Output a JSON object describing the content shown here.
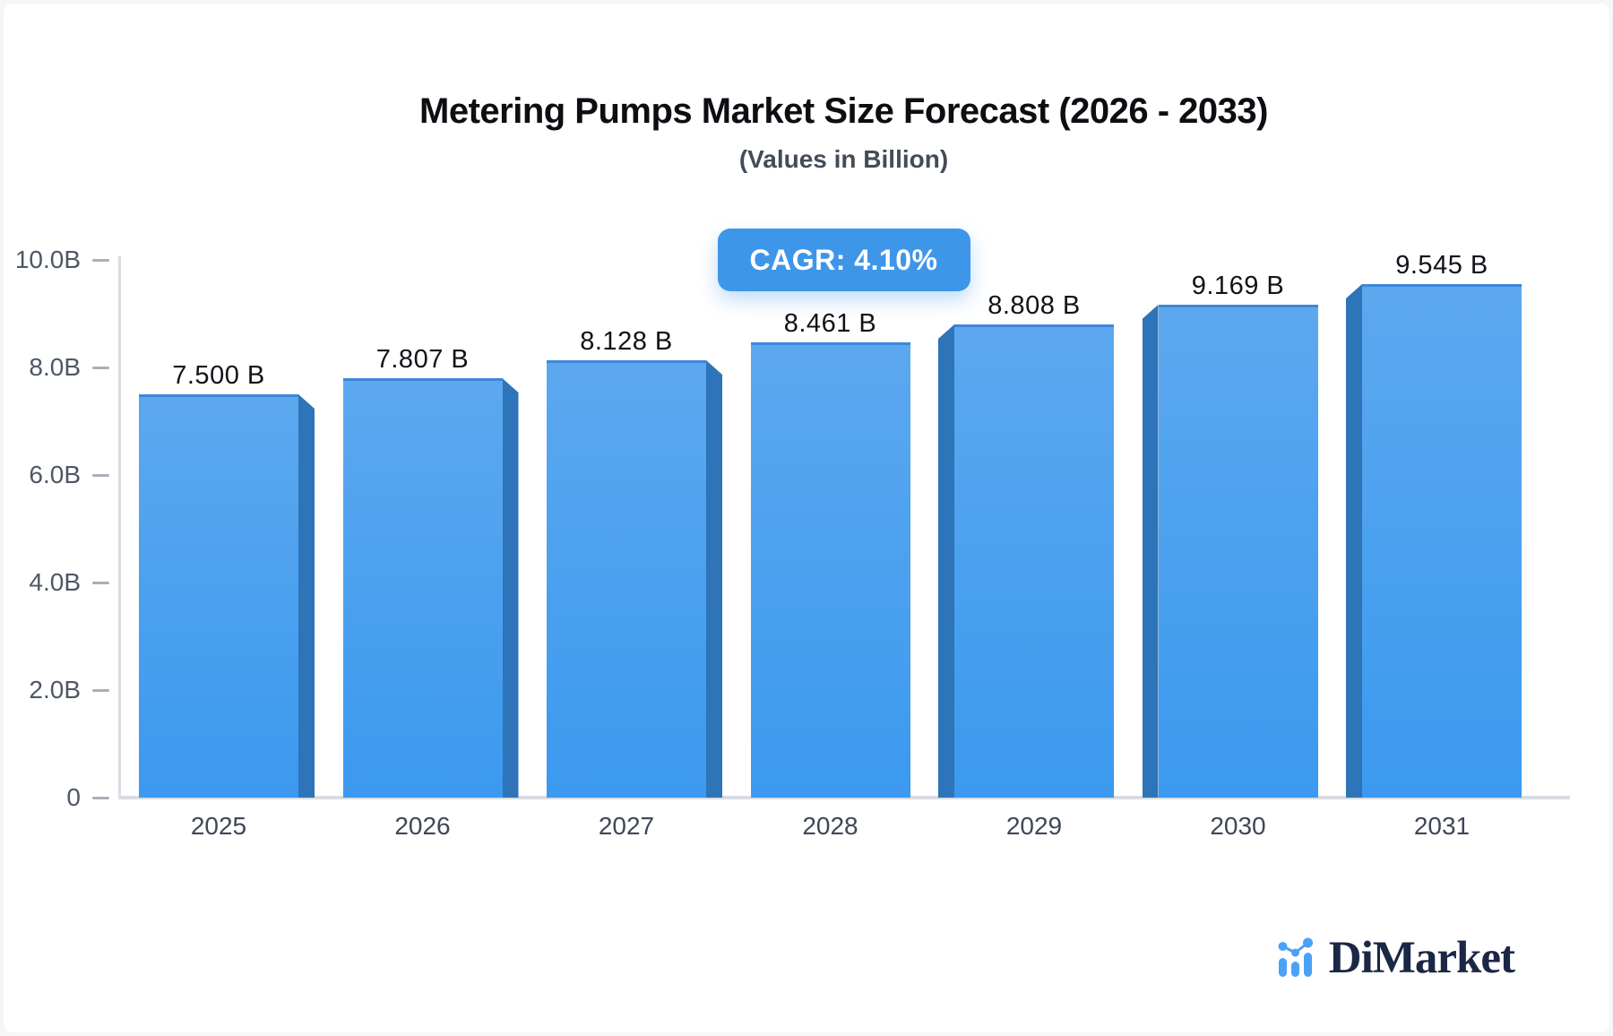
{
  "page": {
    "background": "#F5F6F8",
    "card_background": "#FFFFFF"
  },
  "chart_data": {
    "type": "bar",
    "style": "3d-perspective-bars",
    "title": "Metering Pumps Market Size Forecast (2026 - 2033)",
    "subtitle": "(Values in Billion)",
    "badge": {
      "label": "CAGR: 4.10%",
      "background": "#3E96E8",
      "text_color": "#FFFFFF"
    },
    "categories": [
      "2025",
      "2026",
      "2027",
      "2028",
      "2029",
      "2030",
      "2031"
    ],
    "values": [
      7.5,
      7.807,
      8.128,
      8.461,
      8.808,
      9.169,
      9.545
    ],
    "value_labels": [
      "7.500 B",
      "7.807 B",
      "8.128 B",
      "8.461 B",
      "8.808 B",
      "9.169 B",
      "9.545 B"
    ],
    "unit": "Billion",
    "ylim": [
      0,
      10
    ],
    "yticks": [
      {
        "value": 0,
        "label": "0"
      },
      {
        "value": 2,
        "label": "2.0B"
      },
      {
        "value": 4,
        "label": "4.0B"
      },
      {
        "value": 6,
        "label": "6.0B"
      },
      {
        "value": 8,
        "label": "8.0B"
      },
      {
        "value": 10,
        "label": "10.0B"
      }
    ],
    "grid": false,
    "legend": false,
    "colors": {
      "bar_top": "#5CA8EF",
      "bar_bottom": "#3B99EF",
      "bar_edge": "#3D87DA",
      "bar_side": "#2D74B9",
      "axis": "#D9DCE1",
      "tick": "#A9AFB8",
      "tick_label": "#4E5765",
      "value_label": "#101318",
      "category_label": "#3E4757"
    }
  },
  "branding": {
    "logo_text": "DiMarket",
    "logo_icon": "mini-bar-chart-icon",
    "logo_icon_color": "#4BA1F6",
    "logo_text_color": "#1A2745"
  }
}
